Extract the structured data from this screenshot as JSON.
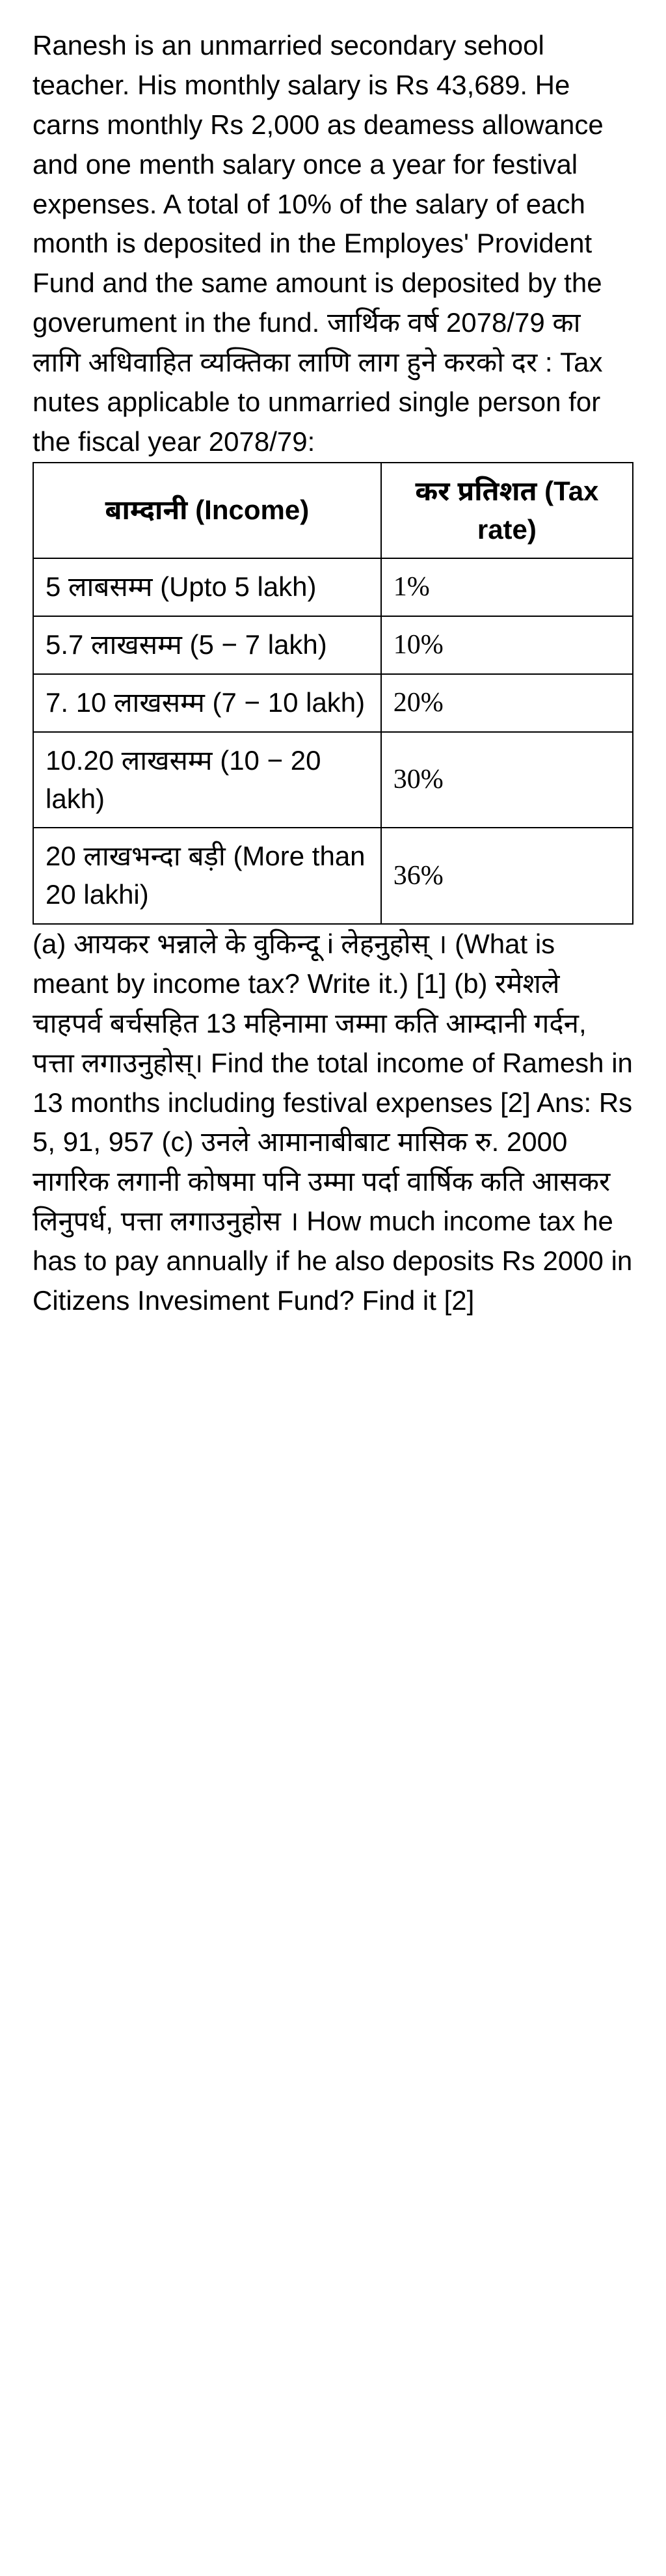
{
  "intro": "Ranesh is an unmarried secondary sehool teacher. His monthly salary is Rs 43,689. He carns monthly Rs 2,000 as deamess allowance and one menth salary once a year for festival expenses. A total of 10% of the salary of each month is deposited in the Employes' Provident Fund and the same amount is deposited by the goverument in the fund. जार्थिक वर्ष 2078/79 का लागि अधिवाहित व्यक्तिका लाणि लाग हुने करको दर : Tax nutes applicable to unmarried single person for the fiscal year 2078/79:",
  "tax_table": {
    "headers": {
      "income": "बाम्दानी (Income)",
      "rate": "कर प्रतिशत (Tax rate)"
    },
    "rows": [
      {
        "income": "5 लाबसम्म (Upto 5 lakh)",
        "rate": "1%"
      },
      {
        "income": "5.7 लाखसम्म (5 − 7 lakh)",
        "rate": "10%"
      },
      {
        "income": "7. 10 लाखसम्म (7 − 10 lakh)",
        "rate": "20%"
      },
      {
        "income": "10.20 लाखसम्म (10 − 20 lakh)",
        "rate": "30%"
      },
      {
        "income": "20 लाखभन्दा बड़ी (More than 20 lakhi)",
        "rate": "36%"
      }
    ]
  },
  "questions": "(a) आयकर भन्नाले के वुकिन्दू i लेहनुहोस् । (What is meant by income tax? Write it.) [1] (b) रमेशले चाहपर्व बर्चसहित 13 महिनामा जम्मा कति आम्दानी गर्दन, पत्ता लगाउनुहोस्। Find the total income of Ramesh in 13 months including festival expenses [2] Ans: Rs 5, 91, 957 (c) उनले आमानाबीबाट मासिक रु. 2000 नागरिक लगानी कोषमा पनि उम्मा पर्दा वार्षिक कति आसकर लिनुपर्ध, पत्ता लगाउनुहोस । How much income tax he has to pay annually if he also deposits Rs 2000 in Citizens Invesiment Fund? Find it [2]",
  "style": {
    "font_size_body": 42,
    "line_height": 1.45,
    "border_color": "#000000",
    "background_color": "#ffffff",
    "text_color": "#000000"
  }
}
